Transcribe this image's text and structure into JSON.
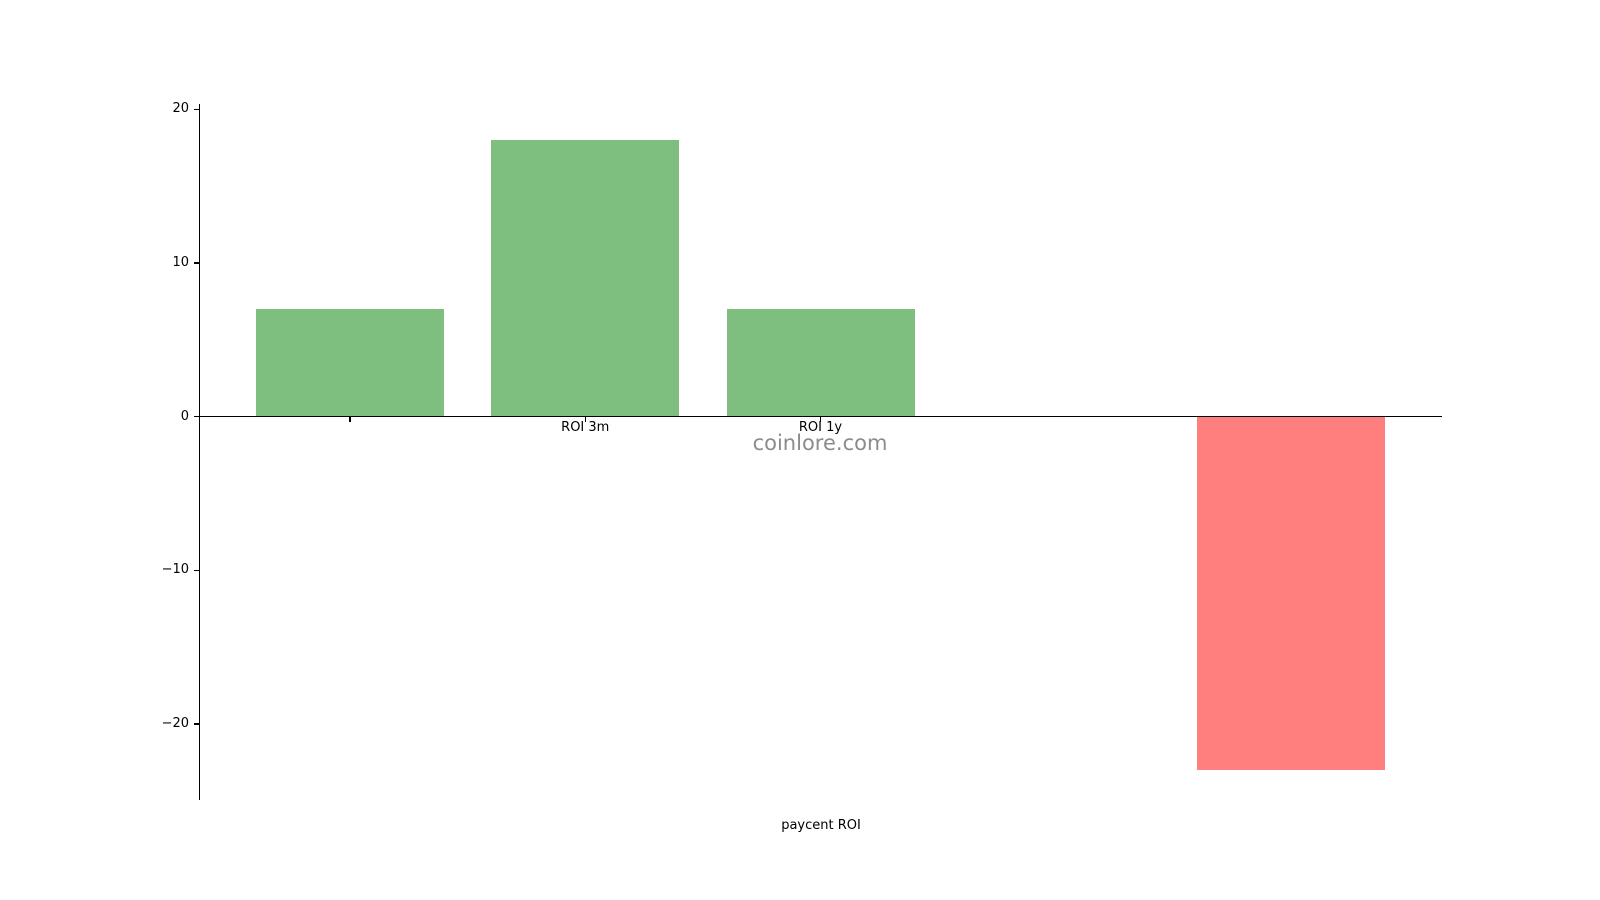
{
  "chart_data": {
    "type": "bar",
    "title": "",
    "xlabel": "paycent ROI",
    "ylabel": "",
    "categories": [
      "",
      "ROI 3m",
      "ROI 1y",
      "",
      ""
    ],
    "values": [
      7,
      18,
      7,
      0,
      -23
    ],
    "series": [
      {
        "name": "paycent ROI",
        "values": [
          7,
          18,
          7,
          0,
          -23
        ]
      }
    ],
    "yticks": [
      20,
      10,
      0,
      -10,
      -20
    ],
    "ytick_labels": [
      "20",
      "10",
      "0",
      "−10",
      "−20"
    ],
    "xticks_with_marks": [
      0,
      1,
      2
    ],
    "ylim": [
      -24.95,
      20.35
    ],
    "grid": false,
    "legend_position": "none",
    "bar_color_positive": "#7ebe7e",
    "bar_color_negative": "#ff7f7f",
    "axis_color": "#000000",
    "text_color": "#000000",
    "background_color": "#ffffff",
    "watermark": {
      "text": "coinlore.com",
      "color": "#8c8c8c"
    }
  }
}
